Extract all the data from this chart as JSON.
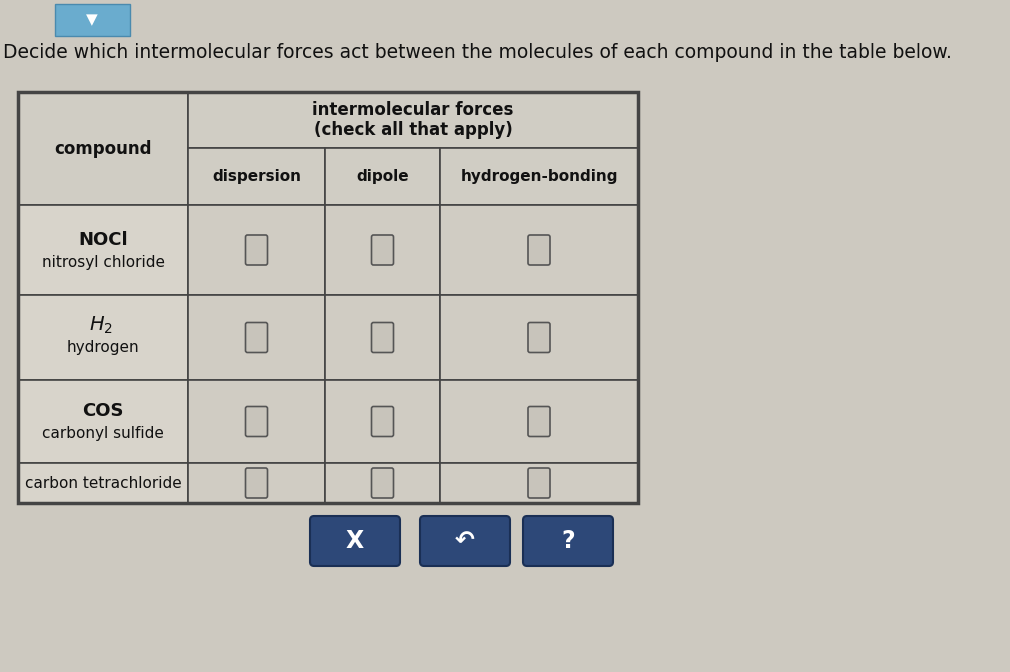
{
  "title": "Decide which intermolecular forces act between the molecules of each compound in the table below.",
  "title_fontsize": 13.5,
  "bg_color": "#cdc9c0",
  "table_bg": "#d8d4cb",
  "header_bg": "#d0cdc4",
  "cell_bg": "#d0ccc3",
  "border_color": "#444444",
  "text_color": "#111111",
  "col_header_1": "compound",
  "col_header_group": "intermolecular forces\n(check all that apply)",
  "col_headers": [
    "dispersion",
    "dipole",
    "hydrogen-bonding"
  ],
  "rows": [
    {
      "name": "NOCl",
      "subname": "nitrosyl chloride"
    },
    {
      "name": "H₂",
      "subname": "hydrogen"
    },
    {
      "name": "COS",
      "subname": "carbonyl sulfide"
    },
    {
      "name": "carbon tetrachloride",
      "subname": ""
    }
  ],
  "button_color": "#2d4878",
  "button_text_color": "#ffffff",
  "button_labels": [
    "X",
    "↶",
    "?"
  ],
  "checkbox_color": "#c8c4bb",
  "checkbox_border": "#555555",
  "figsize": [
    10.1,
    6.72
  ],
  "dpi": 100,
  "top_btn_color": "#6aacce",
  "top_btn_border": "#4a8aae"
}
